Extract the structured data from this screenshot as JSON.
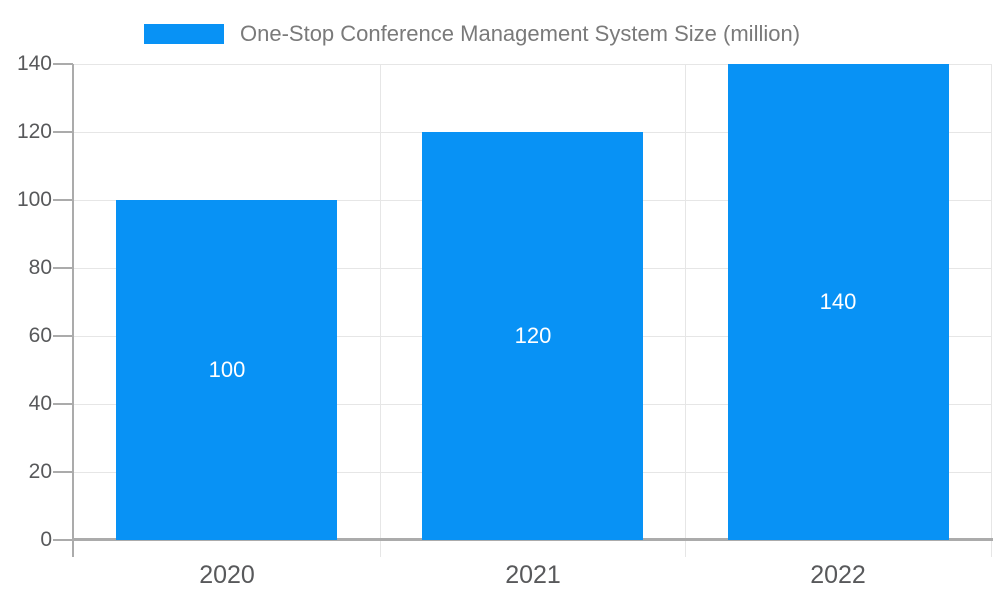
{
  "legend": {
    "label": "One-Stop Conference Management System Size (million)"
  },
  "chart_data": {
    "type": "bar",
    "title": "",
    "xlabel": "",
    "ylabel": "",
    "categories": [
      "2020",
      "2021",
      "2022"
    ],
    "values": [
      100,
      120,
      140
    ],
    "data_labels": [
      "100",
      "120",
      "140"
    ],
    "series_name": "One-Stop Conference Management System Size (million)",
    "yticks": [
      0,
      20,
      40,
      60,
      80,
      100,
      120,
      140
    ],
    "ylim": [
      0,
      140
    ],
    "grid": true,
    "legend_position": "top-center",
    "colors": {
      "bar": "#0892f5",
      "grid": "#e6e6e6",
      "axis": "#ababab",
      "axis_label": "#58595b",
      "legend_text": "#7a7a7a",
      "data_label": "#ffffff",
      "background": "#ffffff"
    }
  }
}
